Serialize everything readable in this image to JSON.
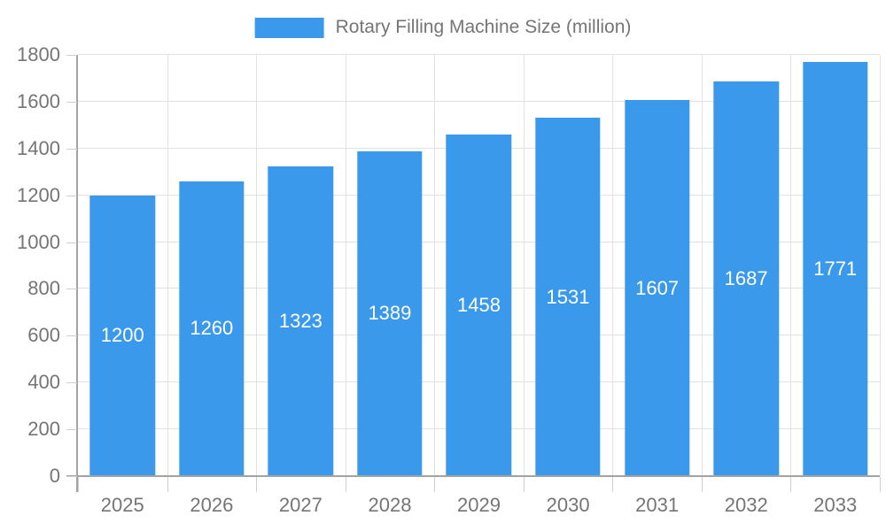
{
  "chart_data": {
    "type": "bar",
    "legend_label": "Rotary Filling Machine Size (million)",
    "legend_position": "top-center",
    "categories": [
      "2025",
      "2026",
      "2027",
      "2028",
      "2029",
      "2030",
      "2031",
      "2032",
      "2033"
    ],
    "series": [
      {
        "name": "Rotary Filling Machine Size (million)",
        "values": [
          1200,
          1260,
          1323,
          1389,
          1458,
          1531,
          1607,
          1687,
          1771
        ]
      }
    ],
    "value_labels_shown_inside_bars": true,
    "xlabel": "",
    "ylabel": "",
    "ylim": [
      0,
      1800
    ],
    "ytick_step": 200,
    "grid": "both",
    "colors": {
      "bar": "#3B99EC",
      "bar_value_text": "#FFFFFF",
      "axis_line": "#A3A3A3",
      "grid_line": "#E2E2E2",
      "tick_mark": "#CFCFCF",
      "tick_text": "#757575",
      "background": "#FFFFFF"
    }
  }
}
